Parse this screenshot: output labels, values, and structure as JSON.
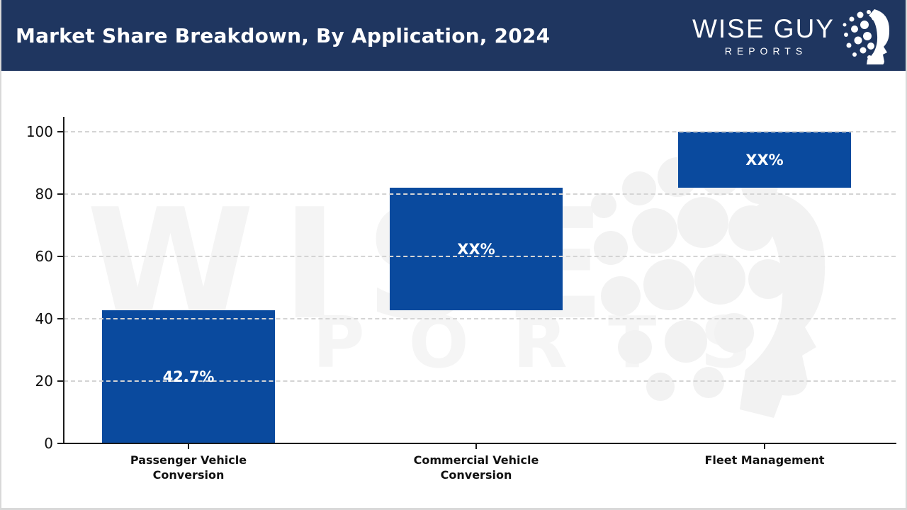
{
  "header": {
    "title": "Market Share Breakdown, By Application, 2024",
    "logo": {
      "brand_line1": "WISE GUY",
      "brand_line2": "REPORTS",
      "icon": "dotted-head-profile"
    },
    "background_color": "#1f3660"
  },
  "watermark": {
    "line1": "WISE",
    "line2": "REPORTS"
  },
  "chart_data": {
    "type": "bar",
    "variant": "waterfall",
    "title": "Market Share Breakdown, By Application, 2024",
    "categories": [
      [
        "Passenger Vehicle",
        "Conversion"
      ],
      [
        "Commercial Vehicle",
        "Conversion"
      ],
      [
        "Fleet Management"
      ]
    ],
    "series": [
      {
        "name": "Market Share",
        "segments": [
          {
            "from": 0,
            "to": 42.7,
            "label": "42.7%"
          },
          {
            "from": 42.7,
            "to": 82,
            "label": "XX%"
          },
          {
            "from": 82,
            "to": 100,
            "label": "XX%"
          }
        ]
      }
    ],
    "ylim": [
      0,
      100
    ],
    "yticks": [
      0,
      20,
      40,
      60,
      80,
      100
    ],
    "xlabel": "",
    "ylabel": "",
    "grid": "horizontal-dashed",
    "legend": "none",
    "bar_color": "#0a4a9e",
    "bar_label_color": "#ffffff"
  }
}
